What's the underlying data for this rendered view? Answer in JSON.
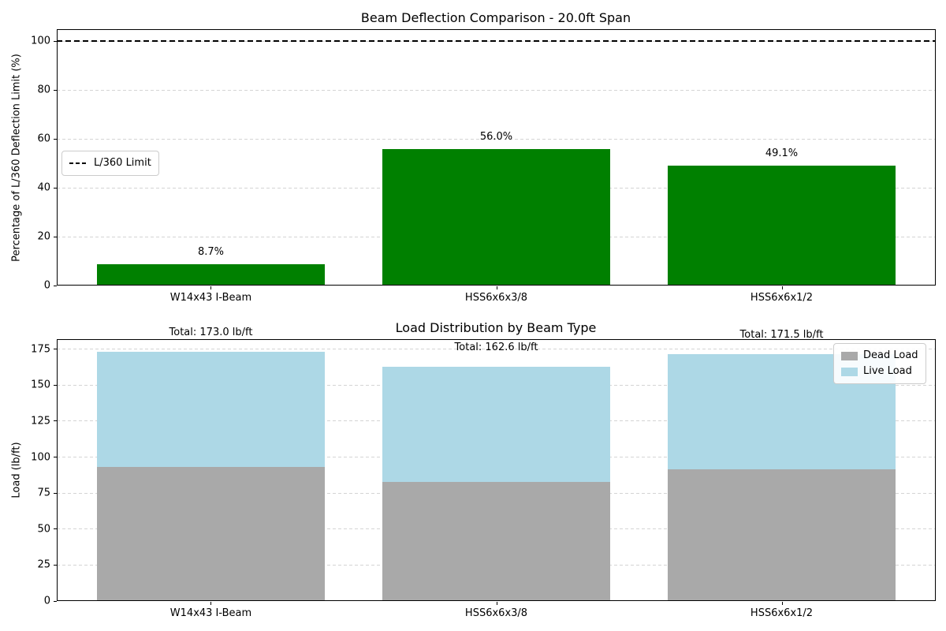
{
  "chart_data": [
    {
      "type": "bar",
      "title": "Beam Deflection Comparison - 20.0ft Span",
      "ylabel": "Percentage of L/360 Deflection Limit (%)",
      "categories": [
        "W14x43 I-Beam",
        "HSS6x6x3/8",
        "HSS6x6x1/2"
      ],
      "values": [
        8.7,
        56.0,
        49.1
      ],
      "value_labels": [
        "8.7%",
        "56.0%",
        "49.1%"
      ],
      "bar_color": "#008000",
      "ylim": [
        0,
        105
      ],
      "yticks": [
        0,
        20,
        40,
        60,
        80,
        100
      ],
      "grid": true,
      "reference_line": {
        "value": 100,
        "color": "#000000",
        "style": "dashed"
      },
      "legend": {
        "position": "center-left",
        "entries": [
          {
            "label": "L/360 Limit",
            "type": "dashed-line",
            "color": "#000000"
          }
        ]
      }
    },
    {
      "type": "stacked-bar",
      "title": "Load Distribution by Beam Type",
      "ylabel": "Load (lb/ft)",
      "categories": [
        "W14x43 I-Beam",
        "HSS6x6x3/8",
        "HSS6x6x1/2"
      ],
      "series": [
        {
          "name": "Dead Load",
          "color": "#a9a9a9",
          "values": [
            93.0,
            82.6,
            91.5
          ]
        },
        {
          "name": "Live Load",
          "color": "#add8e6",
          "values": [
            80.0,
            80.0,
            80.0
          ]
        }
      ],
      "totals": [
        173.0,
        162.6,
        171.5
      ],
      "total_labels": [
        "Total: 173.0 lb/ft",
        "Total: 162.6 lb/ft",
        "Total: 171.5 lb/ft"
      ],
      "ylim": [
        0,
        182
      ],
      "yticks": [
        0,
        25,
        50,
        75,
        100,
        125,
        150,
        175
      ],
      "grid": true,
      "legend": {
        "position": "top-right",
        "entries": [
          {
            "label": "Dead Load",
            "type": "patch",
            "color": "#a9a9a9"
          },
          {
            "label": "Live Load",
            "type": "patch",
            "color": "#add8e6"
          }
        ]
      }
    }
  ]
}
